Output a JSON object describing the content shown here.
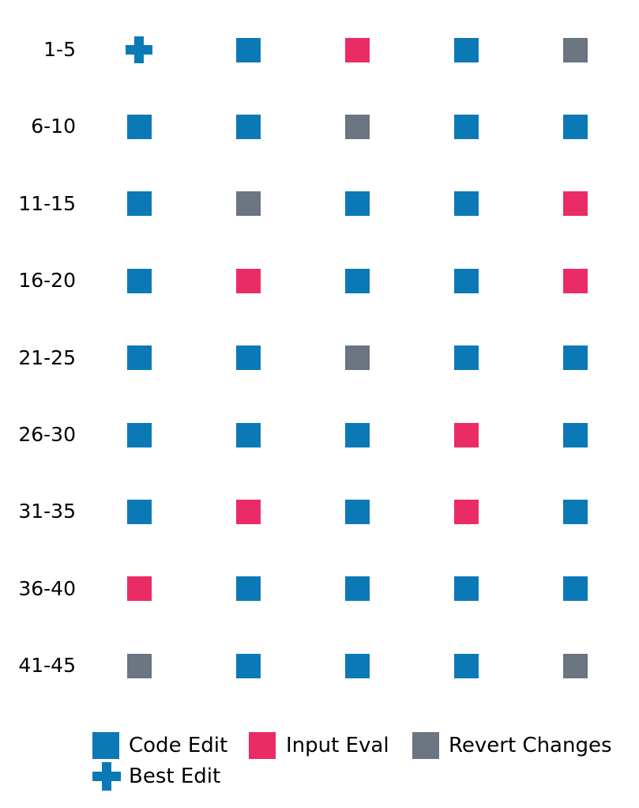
{
  "chart_data": {
    "type": "scatter",
    "title": "",
    "xlabel": "",
    "ylabel": "",
    "grid_on": false,
    "row_categories": [
      "1-5",
      "6-10",
      "11-15",
      "16-20",
      "21-25",
      "26-30",
      "31-35",
      "36-40",
      "41-45"
    ],
    "n_columns": 5,
    "cell_values": [
      [
        "best_edit",
        "code_edit",
        "input_eval",
        "code_edit",
        "revert_changes"
      ],
      [
        "code_edit",
        "code_edit",
        "revert_changes",
        "code_edit",
        "code_edit"
      ],
      [
        "code_edit",
        "revert_changes",
        "code_edit",
        "code_edit",
        "input_eval"
      ],
      [
        "code_edit",
        "input_eval",
        "code_edit",
        "code_edit",
        "input_eval"
      ],
      [
        "code_edit",
        "code_edit",
        "revert_changes",
        "code_edit",
        "code_edit"
      ],
      [
        "code_edit",
        "code_edit",
        "code_edit",
        "input_eval",
        "code_edit"
      ],
      [
        "code_edit",
        "input_eval",
        "code_edit",
        "input_eval",
        "code_edit"
      ],
      [
        "input_eval",
        "code_edit",
        "code_edit",
        "code_edit",
        "code_edit"
      ],
      [
        "revert_changes",
        "code_edit",
        "code_edit",
        "code_edit",
        "revert_changes"
      ]
    ],
    "categories": {
      "code_edit": {
        "label": "Code Edit",
        "color": "#0c79b7",
        "marker": "square"
      },
      "input_eval": {
        "label": "Input Eval",
        "color": "#ea2c66",
        "marker": "square"
      },
      "revert_changes": {
        "label": "Revert Changes",
        "color": "#6c7582",
        "marker": "square"
      },
      "best_edit": {
        "label": "Best Edit",
        "color": "#0c79b7",
        "marker": "plus"
      }
    },
    "legend_position": "bottom",
    "legend_order": [
      "code_edit",
      "input_eval",
      "revert_changes",
      "best_edit"
    ]
  }
}
